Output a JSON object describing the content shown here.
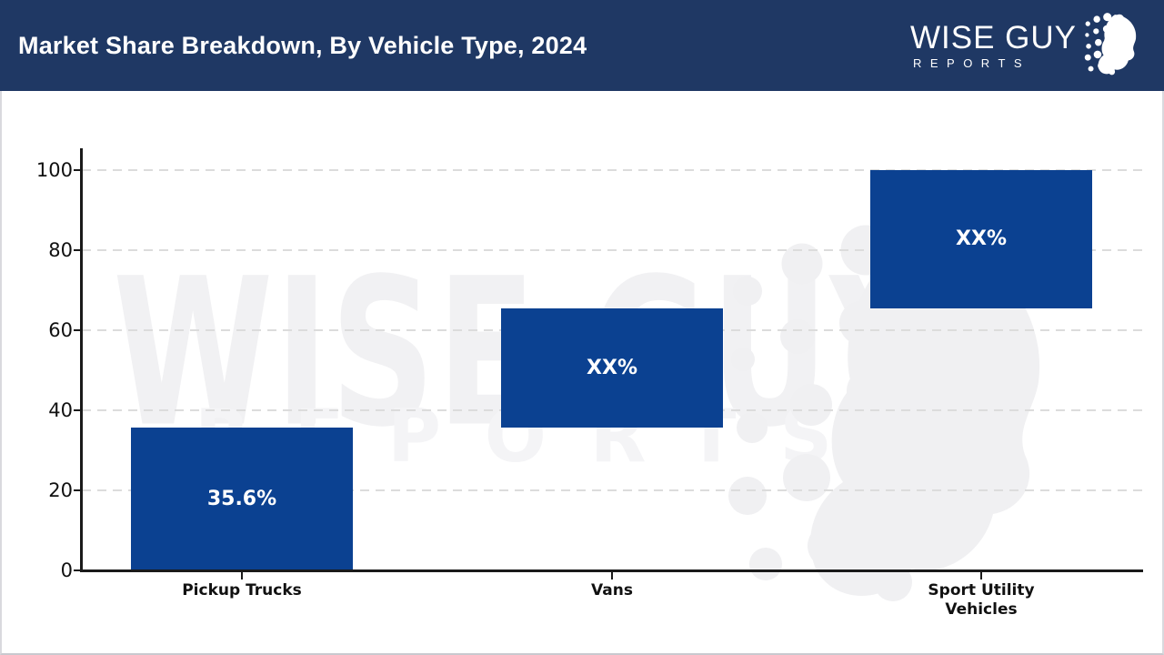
{
  "header": {
    "title": "Market Share Breakdown, By Vehicle Type, 2024",
    "bg_color": "#1f3864",
    "brand": {
      "line1": "WISE GUY",
      "line2": "REPORTS"
    }
  },
  "watermark": {
    "line1": "WISE GUY",
    "line2": "REPORTS"
  },
  "chart_data": {
    "type": "waterfall",
    "title": "Market Share Breakdown, By Vehicle Type, 2024",
    "categories": [
      "Pickup Trucks",
      "Vans",
      "Sport Utility Vehicles"
    ],
    "segments": [
      {
        "category": "Pickup Trucks",
        "start": 0,
        "end": 35.6,
        "label": "35.6%"
      },
      {
        "category": "Vans",
        "start": 35.6,
        "end": 65.4,
        "label": "XX%"
      },
      {
        "category": "Sport Utility Vehicles",
        "start": 65.4,
        "end": 100,
        "label": "XX%"
      }
    ],
    "yticks": [
      0,
      20,
      40,
      60,
      80,
      100
    ],
    "ylim": [
      0,
      105.6
    ],
    "xlabel": "",
    "ylabel": "",
    "bar_color": "#0b4191",
    "axis_color": "#1a1a1a",
    "grid": "horizontal-dashed",
    "legend": "none"
  }
}
